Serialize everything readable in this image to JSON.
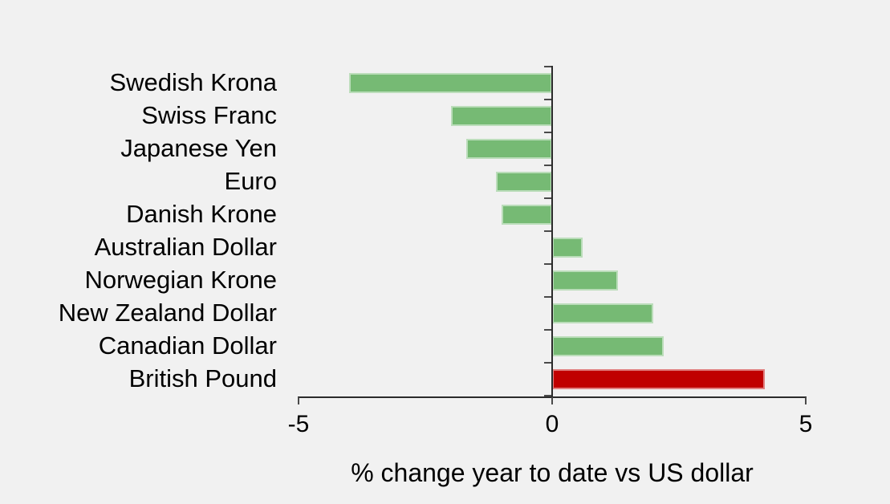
{
  "page": {
    "background": "#f1f1f1"
  },
  "chart_data": {
    "type": "bar",
    "orientation": "horizontal",
    "title": "",
    "xlabel": "% change year to date vs US dollar",
    "ylabel": "",
    "xlim": [
      -5,
      5
    ],
    "xticks": [
      -5,
      0,
      5
    ],
    "xtick_labels": [
      "-5",
      "0",
      "5"
    ],
    "grid": false,
    "categories": [
      "Swedish Krona",
      "Swiss Franc",
      "Japanese Yen",
      "Euro",
      "Danish Krone",
      "Australian Dollar",
      "Norwegian Krone",
      "New Zealand Dollar",
      "Canadian Dollar",
      "British Pound"
    ],
    "values": [
      -4.0,
      -2.0,
      -1.7,
      -1.1,
      -1.0,
      0.6,
      1.3,
      2.0,
      2.2,
      4.2
    ],
    "highlight_category": "British Pound",
    "colors": {
      "bar_default": "#76ba74",
      "bar_highlight": "#c00000",
      "axis_line": "#2b2b2b",
      "tick_mark": "#4a4a4a",
      "text": "#000000",
      "background": "#f1f1f1"
    }
  }
}
